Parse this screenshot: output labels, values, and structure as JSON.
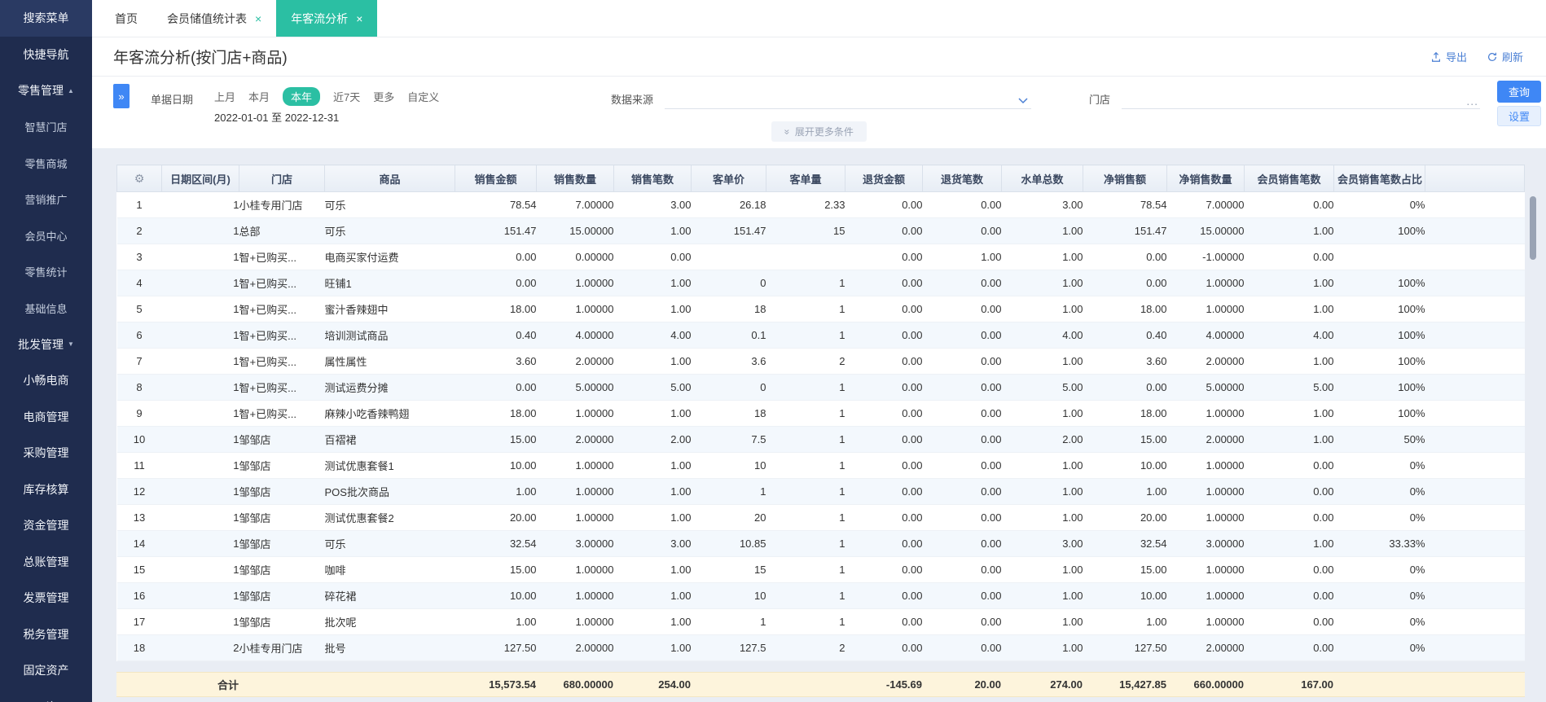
{
  "colors": {
    "sidebar_bg": "#1f2c4e",
    "accent_teal": "#2bbfa3",
    "accent_blue": "#3f87f5",
    "negative_red": "#e64c4c",
    "total_row_bg": "#fdf4dc"
  },
  "sidebar": {
    "items": [
      {
        "label": "搜索菜单"
      },
      {
        "label": "快捷导航"
      },
      {
        "label": "零售管理",
        "arrow": "up"
      },
      {
        "label": "智慧门店",
        "sub": true
      },
      {
        "label": "零售商城",
        "sub": true
      },
      {
        "label": "营销推广",
        "sub": true
      },
      {
        "label": "会员中心",
        "sub": true
      },
      {
        "label": "零售统计",
        "sub": true
      },
      {
        "label": "基础信息",
        "sub": true
      },
      {
        "label": "批发管理",
        "arrow": "down"
      },
      {
        "label": "小畅电商"
      },
      {
        "label": "电商管理"
      },
      {
        "label": "采购管理"
      },
      {
        "label": "库存核算"
      },
      {
        "label": "资金管理"
      },
      {
        "label": "总账管理"
      },
      {
        "label": "发票管理"
      },
      {
        "label": "税务管理"
      },
      {
        "label": "固定资产"
      },
      {
        "label": "工资"
      }
    ]
  },
  "tabs": [
    {
      "label": "首页"
    },
    {
      "label": "会员储值统计表",
      "closable": true
    },
    {
      "label": "年客流分析",
      "closable": true,
      "active": true
    }
  ],
  "header": {
    "title": "年客流分析(按门店+商品)",
    "export": "导出",
    "refresh": "刷新"
  },
  "filters": {
    "collapse_icon": "»",
    "date_label": "单据日期",
    "date_options": [
      {
        "label": "上月"
      },
      {
        "label": "本月"
      },
      {
        "label": "本年",
        "active": true
      },
      {
        "label": "近7天"
      },
      {
        "label": "更多"
      },
      {
        "label": "自定义"
      }
    ],
    "date_range": "2022-01-01 至 2022-12-31",
    "datasource_label": "数据来源",
    "store_label": "门店",
    "store_more": "...",
    "query": "查询",
    "settings": "设置",
    "expand_more": "展开更多条件"
  },
  "table": {
    "headers": [
      "日期区间(月)",
      "门店",
      "商品",
      "销售金额",
      "销售数量",
      "销售笔数",
      "客单价",
      "客单量",
      "退货金额",
      "退货笔数",
      "水单总数",
      "净销售额",
      "净销售数量",
      "会员销售笔数",
      "会员销售笔数占比"
    ],
    "rows": [
      [
        "1",
        "1",
        "小桂专用门店",
        "可乐",
        "78.54",
        "7.00000",
        "3.00",
        "26.18",
        "2.33",
        "0.00",
        "0.00",
        "3.00",
        "78.54",
        "7.00000",
        "0.00",
        "0%"
      ],
      [
        "2",
        "1",
        "总部",
        "可乐",
        "151.47",
        "15.00000",
        "1.00",
        "151.47",
        "15",
        "0.00",
        "0.00",
        "1.00",
        "151.47",
        "15.00000",
        "1.00",
        "100%"
      ],
      [
        "3",
        "1",
        "智+已购买...",
        "电商买家付运费",
        "0.00",
        "0.00000",
        "0.00",
        "",
        "",
        "0.00",
        "1.00",
        "1.00",
        "0.00",
        "-1.00000",
        "0.00",
        ""
      ],
      [
        "4",
        "1",
        "智+已购买...",
        "旺铺1",
        "0.00",
        "1.00000",
        "1.00",
        "0",
        "1",
        "0.00",
        "0.00",
        "1.00",
        "0.00",
        "1.00000",
        "1.00",
        "100%"
      ],
      [
        "5",
        "1",
        "智+已购买...",
        "蜜汁香辣翅中",
        "18.00",
        "1.00000",
        "1.00",
        "18",
        "1",
        "0.00",
        "0.00",
        "1.00",
        "18.00",
        "1.00000",
        "1.00",
        "100%"
      ],
      [
        "6",
        "1",
        "智+已购买...",
        "培训测试商品",
        "0.40",
        "4.00000",
        "4.00",
        "0.1",
        "1",
        "0.00",
        "0.00",
        "4.00",
        "0.40",
        "4.00000",
        "4.00",
        "100%"
      ],
      [
        "7",
        "1",
        "智+已购买...",
        "属性属性",
        "3.60",
        "2.00000",
        "1.00",
        "3.6",
        "2",
        "0.00",
        "0.00",
        "1.00",
        "3.60",
        "2.00000",
        "1.00",
        "100%"
      ],
      [
        "8",
        "1",
        "智+已购买...",
        "测试运费分摊",
        "0.00",
        "5.00000",
        "5.00",
        "0",
        "1",
        "0.00",
        "0.00",
        "5.00",
        "0.00",
        "5.00000",
        "5.00",
        "100%"
      ],
      [
        "9",
        "1",
        "智+已购买...",
        "麻辣小吃香辣鸭翅",
        "18.00",
        "1.00000",
        "1.00",
        "18",
        "1",
        "0.00",
        "0.00",
        "1.00",
        "18.00",
        "1.00000",
        "1.00",
        "100%"
      ],
      [
        "10",
        "1",
        "邹邹店",
        "百褶裙",
        "15.00",
        "2.00000",
        "2.00",
        "7.5",
        "1",
        "0.00",
        "0.00",
        "2.00",
        "15.00",
        "2.00000",
        "1.00",
        "50%"
      ],
      [
        "11",
        "1",
        "邹邹店",
        "测试优惠套餐1",
        "10.00",
        "1.00000",
        "1.00",
        "10",
        "1",
        "0.00",
        "0.00",
        "1.00",
        "10.00",
        "1.00000",
        "0.00",
        "0%"
      ],
      [
        "12",
        "1",
        "邹邹店",
        "POS批次商品",
        "1.00",
        "1.00000",
        "1.00",
        "1",
        "1",
        "0.00",
        "0.00",
        "1.00",
        "1.00",
        "1.00000",
        "0.00",
        "0%"
      ],
      [
        "13",
        "1",
        "邹邹店",
        "测试优惠套餐2",
        "20.00",
        "1.00000",
        "1.00",
        "20",
        "1",
        "0.00",
        "0.00",
        "1.00",
        "20.00",
        "1.00000",
        "0.00",
        "0%"
      ],
      [
        "14",
        "1",
        "邹邹店",
        "可乐",
        "32.54",
        "3.00000",
        "3.00",
        "10.85",
        "1",
        "0.00",
        "0.00",
        "3.00",
        "32.54",
        "3.00000",
        "1.00",
        "33.33%"
      ],
      [
        "15",
        "1",
        "邹邹店",
        "咖啡",
        "15.00",
        "1.00000",
        "1.00",
        "15",
        "1",
        "0.00",
        "0.00",
        "1.00",
        "15.00",
        "1.00000",
        "0.00",
        "0%"
      ],
      [
        "16",
        "1",
        "邹邹店",
        "碎花裙",
        "10.00",
        "1.00000",
        "1.00",
        "10",
        "1",
        "0.00",
        "0.00",
        "1.00",
        "10.00",
        "1.00000",
        "0.00",
        "0%"
      ],
      [
        "17",
        "1",
        "邹邹店",
        "批次呢",
        "1.00",
        "1.00000",
        "1.00",
        "1",
        "1",
        "0.00",
        "0.00",
        "1.00",
        "1.00",
        "1.00000",
        "0.00",
        "0%"
      ],
      [
        "18",
        "2",
        "小桂专用门店",
        "批号",
        "127.50",
        "2.00000",
        "1.00",
        "127.5",
        "2",
        "0.00",
        "0.00",
        "1.00",
        "127.50",
        "2.00000",
        "0.00",
        "0%"
      ]
    ],
    "total": [
      "",
      "合计",
      "",
      "",
      "15,573.54",
      "680.00000",
      "254.00",
      "",
      "",
      "-145.69",
      "20.00",
      "274.00",
      "15,427.85",
      "660.00000",
      "167.00",
      ""
    ]
  }
}
